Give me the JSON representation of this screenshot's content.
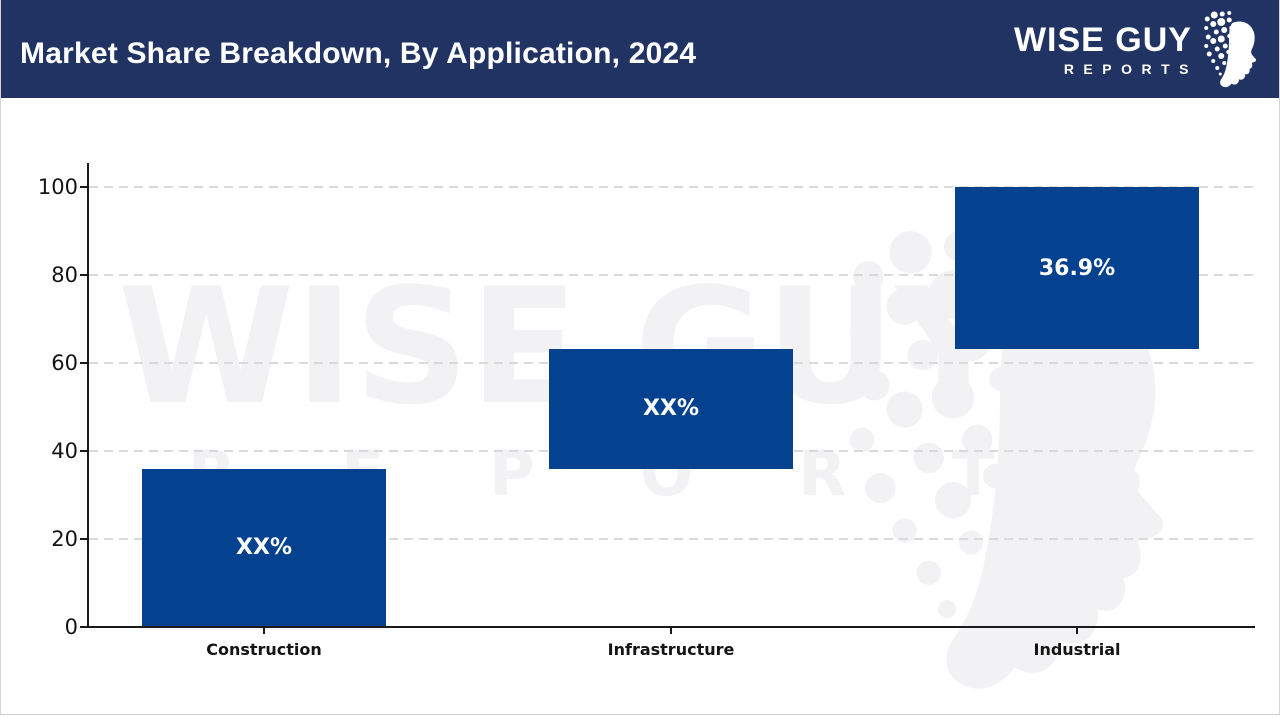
{
  "header": {
    "title": "Market Share Breakdown, By Application, 2024",
    "bg_color": "#203362",
    "logo": {
      "line1": "WISE GUY",
      "line2": "REPORTS",
      "face_icon": "dotted-head-profile-icon"
    }
  },
  "watermark": {
    "line1": "WISE GUY",
    "line2": "R E P O R T S",
    "face_icon": "dotted-head-profile-watermark"
  },
  "chart_data": {
    "type": "bar",
    "variant": "waterfall-floating-bars",
    "title": "Market Share Breakdown, By Application, 2024",
    "categories": [
      "Construction",
      "Infrastructure",
      "Industrial"
    ],
    "segments": [
      {
        "category": "Construction",
        "start": 0,
        "end": 36,
        "label": "XX%"
      },
      {
        "category": "Infrastructure",
        "start": 36,
        "end": 63.1,
        "label": "XX%"
      },
      {
        "category": "Industrial",
        "start": 63.1,
        "end": 100,
        "label": "36.9%"
      }
    ],
    "yticks": [
      0,
      20,
      40,
      60,
      80,
      100
    ],
    "ylim": [
      0,
      105.5
    ],
    "xlabel": "",
    "ylabel": "",
    "grid": "horizontal-dashed",
    "legend": "none",
    "bar_color": "#04418f",
    "bar_label_color": "#ffffff",
    "gridline_color": "#dadada",
    "axis_color": "#1a1a1a"
  }
}
